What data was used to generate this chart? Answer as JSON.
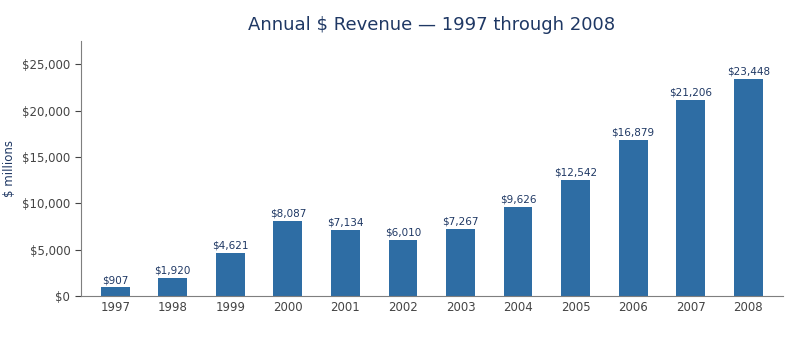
{
  "title": "Annual $ Revenue — 1997 through 2008",
  "ylabel": "$ millions",
  "categories": [
    "1997",
    "1998",
    "1999",
    "2000",
    "2001",
    "2002",
    "2003",
    "2004",
    "2005",
    "2006",
    "2007",
    "2008"
  ],
  "values": [
    907,
    1920,
    4621,
    8087,
    7134,
    6010,
    7267,
    9626,
    12542,
    16879,
    21206,
    23448
  ],
  "labels": [
    "$907",
    "$1,920",
    "$4,621",
    "$8,087",
    "$7,134",
    "$6,010",
    "$7,267",
    "$9,626",
    "$12,542",
    "$16,879",
    "$21,206",
    "$23,448"
  ],
  "bar_color": "#2E6DA4",
  "title_color": "#1F3864",
  "label_color": "#1F3864",
  "spine_color": "#7F7F7F",
  "background_color": "#ffffff",
  "ylim": [
    0,
    27500
  ],
  "yticks": [
    0,
    5000,
    10000,
    15000,
    20000,
    25000
  ],
  "title_fontsize": 13,
  "label_fontsize": 7.5,
  "tick_fontsize": 8.5,
  "ylabel_fontsize": 8.5,
  "bar_width": 0.5
}
